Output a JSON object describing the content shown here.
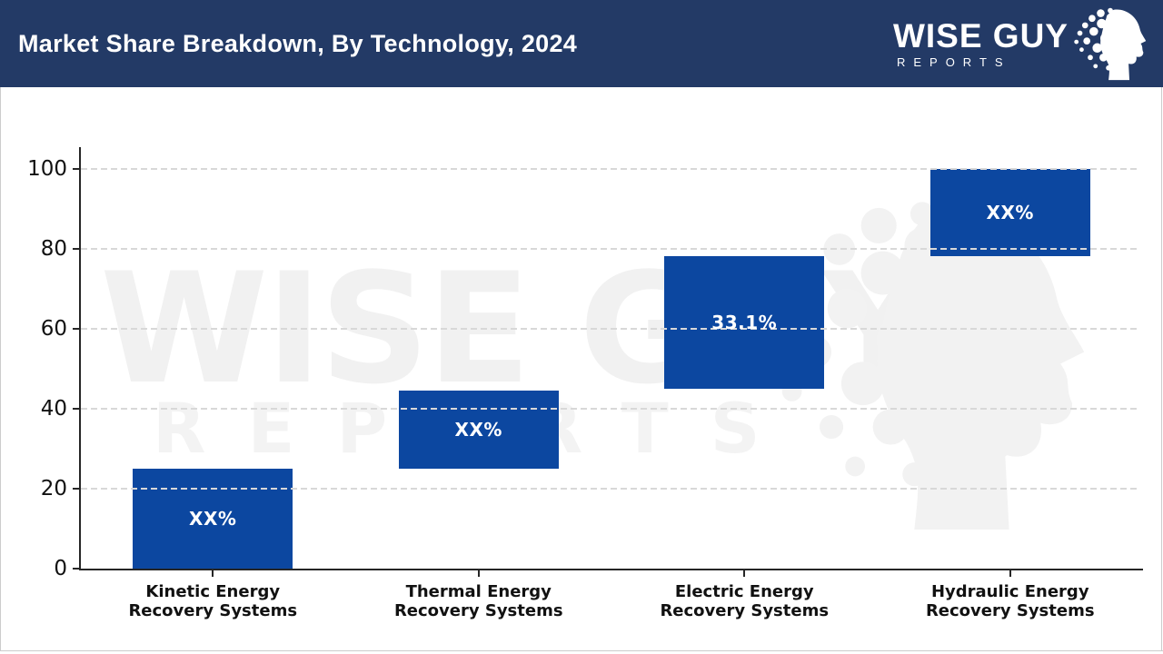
{
  "header": {
    "title": "Market Share Breakdown, By Technology, 2024",
    "logo": {
      "word": "WISE GUY",
      "sub": "REPORTS"
    }
  },
  "watermark": {
    "big": "WISE GUY",
    "sub": "REPORTS"
  },
  "chart_data": {
    "type": "bar",
    "subtype": "waterfall",
    "title": "Market Share Breakdown, By Technology, 2024",
    "categories": [
      "Kinetic Energy Recovery Systems",
      "Thermal Energy Recovery Systems",
      "Electric Energy Recovery Systems",
      "Hydraulic Energy Recovery Systems"
    ],
    "x_labels_lines": [
      [
        "Kinetic Energy",
        "Recovery Systems"
      ],
      [
        "Thermal Energy",
        "Recovery Systems"
      ],
      [
        "Electric Energy",
        "Recovery Systems"
      ],
      [
        "Hydraulic Energy",
        "Recovery Systems"
      ]
    ],
    "segments": [
      {
        "category": "Kinetic Energy Recovery Systems",
        "start": 0,
        "end": 25,
        "label": "XX%"
      },
      {
        "category": "Thermal Energy Recovery Systems",
        "start": 25,
        "end": 44.5,
        "label": "XX%"
      },
      {
        "category": "Electric Energy Recovery Systems",
        "start": 45,
        "end": 78.1,
        "label": "33.1%"
      },
      {
        "category": "Hydraulic Energy Recovery Systems",
        "start": 78.1,
        "end": 100,
        "label": "XX%"
      }
    ],
    "y_ticks": [
      "0",
      "20",
      "40",
      "60",
      "80",
      "100"
    ],
    "ylim": [
      0,
      100
    ],
    "grid": "horizontal-dashed",
    "legend": "none",
    "colors": {
      "bar": "#0c47a0",
      "bar_label": "#ffffff",
      "grid": "#d8d8d8",
      "axis": "#262626",
      "header_bg": "#233a66",
      "watermark": "#f1f1f1"
    }
  }
}
